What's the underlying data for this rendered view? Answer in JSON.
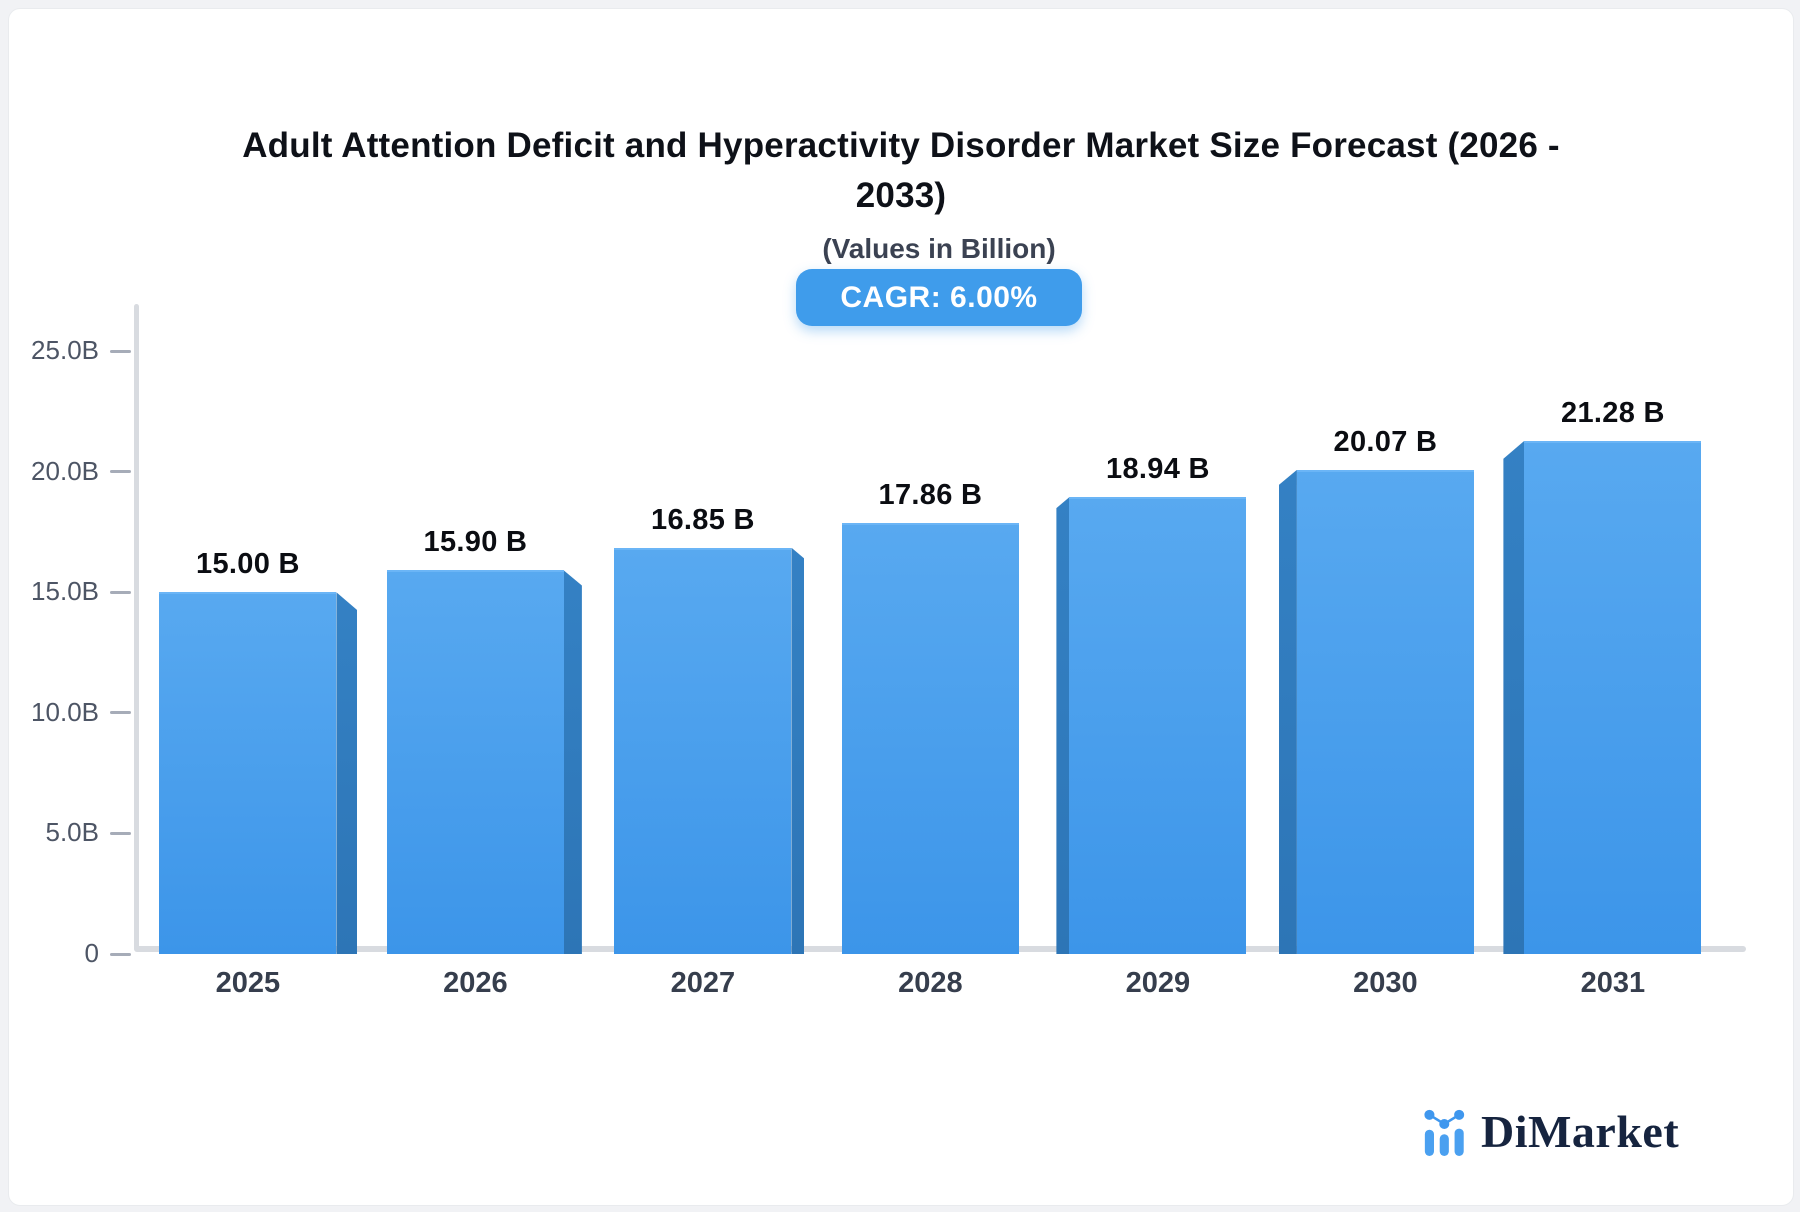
{
  "header": {
    "title_line1": "Adult Attention Deficit and Hyperactivity Disorder Market Size Forecast (2026 -",
    "title_line2": "2033)",
    "subtitle": "(Values in Billion)",
    "cagr_label": "CAGR: 6.00%"
  },
  "chart_data": {
    "type": "bar",
    "title": "Adult Attention Deficit and Hyperactivity Disorder Market Size Forecast (2026 - 2033)",
    "subtitle": "(Values in Billion)",
    "cagr_percent": "6.00%",
    "categories": [
      "2025",
      "2026",
      "2027",
      "2028",
      "2029",
      "2030",
      "2031"
    ],
    "values": [
      15.0,
      15.9,
      16.85,
      17.86,
      18.94,
      20.07,
      21.28
    ],
    "value_labels": [
      "15.00 B",
      "15.90 B",
      "16.85 B",
      "17.86 B",
      "18.94 B",
      "20.07 B",
      "21.28 B"
    ],
    "xlabel": "",
    "ylabel": "",
    "ylim": [
      0,
      25
    ],
    "yticks": [
      0,
      5,
      10,
      15,
      20,
      25
    ],
    "ytick_labels": [
      "0",
      "5.0B",
      "10.0B",
      "15.0B",
      "20.0B",
      "25.0B"
    ],
    "grid": false,
    "legend": false,
    "bar_style": {
      "effect": "3d-perspective-extrusion-toward-center",
      "face_color_top": "#58a9f0",
      "face_color_bottom": "#3c95e9",
      "side_color": "#2e77b8",
      "axis_color": "#d8dbe0",
      "tick_color": "#a6acb8"
    }
  },
  "footer": {
    "brand": "DiMarket",
    "logo_icon": "bar-chart-with-trend-dots-icon",
    "logo_blue": "#4aa0f0",
    "logo_text_color": "#16243f"
  }
}
